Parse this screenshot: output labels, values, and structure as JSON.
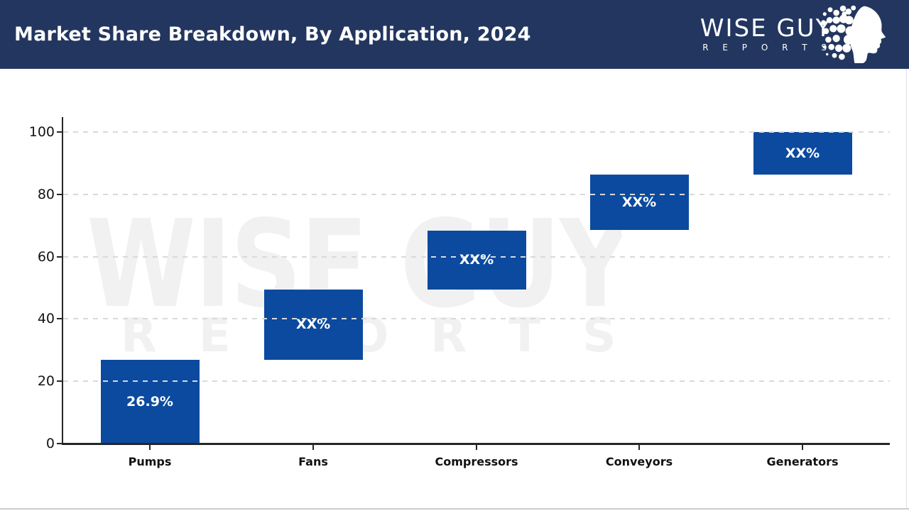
{
  "header": {
    "title": "Market Share Breakdown, By Application, 2024",
    "logo": {
      "wordmark": "WISE GUY",
      "reports": "R E P O R T S"
    }
  },
  "watermark": {
    "wordmark": "WISE GUY",
    "reports": "R E P O R T S"
  },
  "colors": {
    "header_bg": "#22365f",
    "bar": "#0b4a9f",
    "bar_label": "#ffffff",
    "axis": "#262626",
    "grid": "#d9d9d9",
    "watermark": "#f1f1f1"
  },
  "chart_data": {
    "type": "bar",
    "subtype": "waterfall (floating cumulative segments)",
    "title": "Market Share Breakdown, By Application, 2024",
    "xlabel": "",
    "ylabel": "",
    "categories": [
      "Pumps",
      "Fans",
      "Compressors",
      "Conveyors",
      "Generators"
    ],
    "segments": [
      {
        "category": "Pumps",
        "start": 0,
        "end": 26.9,
        "label": "26.9%"
      },
      {
        "category": "Fans",
        "start": 26.9,
        "end": 49.5,
        "label": "XX%"
      },
      {
        "category": "Compressors",
        "start": 49.5,
        "end": 68.4,
        "label": "XX%"
      },
      {
        "category": "Conveyors",
        "start": 68.5,
        "end": 86.4,
        "label": "XX%"
      },
      {
        "category": "Generators",
        "start": 86.4,
        "end": 100,
        "label": "XX%"
      }
    ],
    "yticks": [
      0,
      20,
      40,
      60,
      80,
      100
    ],
    "ylim": [
      0,
      104
    ],
    "grid": "horizontal dashed, drawn over bars",
    "legend": "none"
  }
}
